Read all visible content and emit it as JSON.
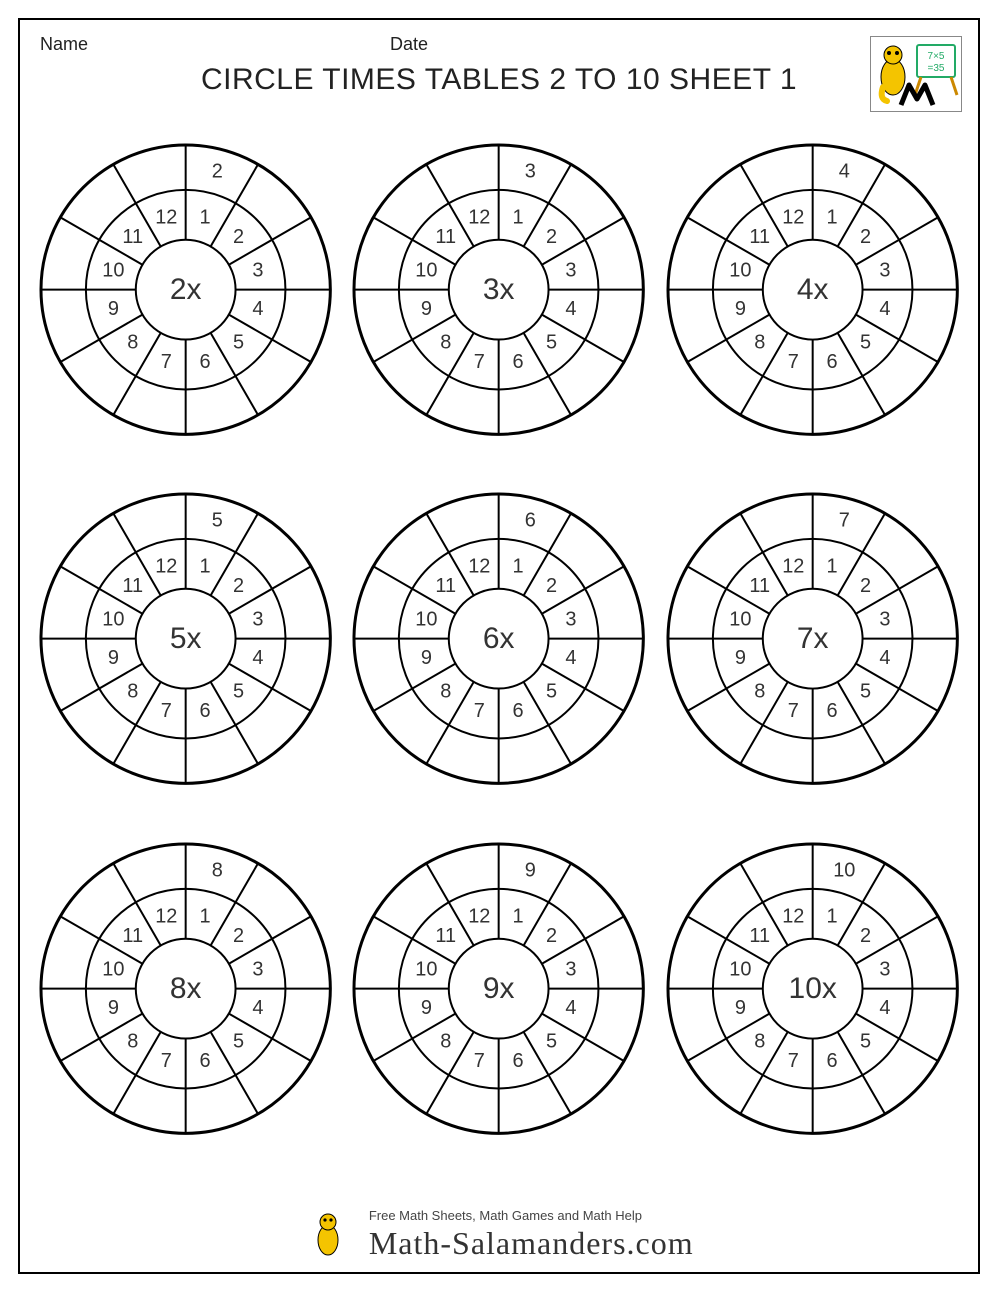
{
  "header": {
    "name_label": "Name",
    "date_label": "Date"
  },
  "title": "CIRCLE TIMES TABLES 2 TO 10 SHEET 1",
  "style": {
    "stroke_color": "#000000",
    "text_color": "#333333",
    "background_color": "#ffffff",
    "segments": 12,
    "svg_size": 300,
    "outer_radius": 145,
    "middle_radius": 100,
    "inner_radius": 50,
    "center_fontsize": 30,
    "inner_fontsize": 20,
    "outer_fontsize": 20,
    "stroke_width_thick": 3,
    "stroke_width_thin": 2
  },
  "inner_numbers": [
    1,
    2,
    3,
    4,
    5,
    6,
    7,
    8,
    9,
    10,
    11,
    12
  ],
  "circles": [
    {
      "multiplier": 2,
      "label": "2x",
      "outer_prefill": {
        "0": "2"
      }
    },
    {
      "multiplier": 3,
      "label": "3x",
      "outer_prefill": {
        "0": "3"
      }
    },
    {
      "multiplier": 4,
      "label": "4x",
      "outer_prefill": {
        "0": "4"
      }
    },
    {
      "multiplier": 5,
      "label": "5x",
      "outer_prefill": {
        "0": "5"
      }
    },
    {
      "multiplier": 6,
      "label": "6x",
      "outer_prefill": {
        "0": "6"
      }
    },
    {
      "multiplier": 7,
      "label": "7x",
      "outer_prefill": {
        "0": "7"
      }
    },
    {
      "multiplier": 8,
      "label": "8x",
      "outer_prefill": {
        "0": "8"
      }
    },
    {
      "multiplier": 9,
      "label": "9x",
      "outer_prefill": {
        "0": "9"
      }
    },
    {
      "multiplier": 10,
      "label": "10x",
      "outer_prefill": {
        "0": "10"
      }
    }
  ],
  "footer": {
    "tagline": "Free Math Sheets, Math Games and Math Help",
    "site": "Math-Salamanders.com"
  },
  "logo": {
    "eq_text": "7×5\n=35"
  }
}
